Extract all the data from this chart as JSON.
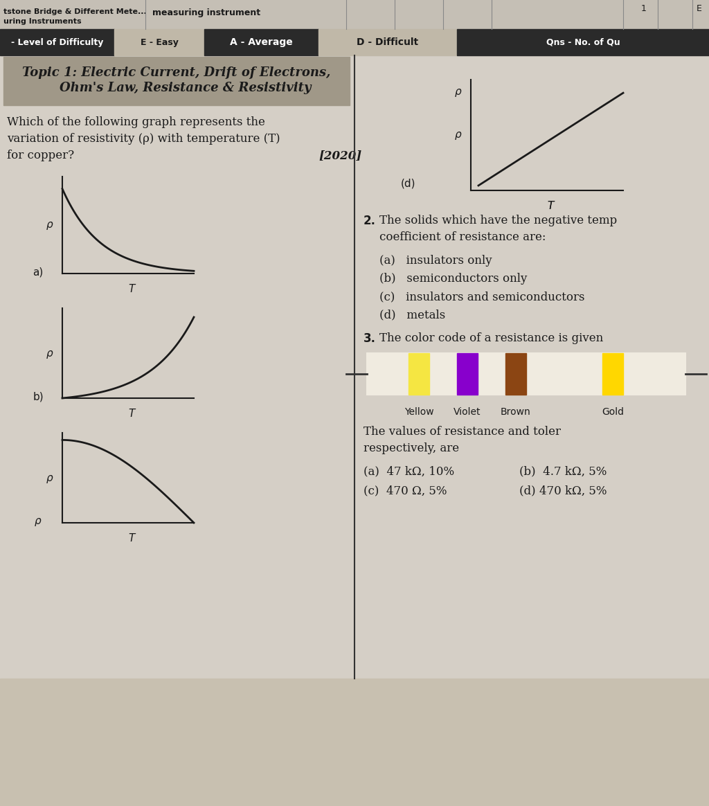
{
  "bg_color": "#d8d0c8",
  "page_bg": "#e8e0d5",
  "header_row1_bg": "#c8c0b8",
  "header_row2_dark": "#404040",
  "header_row2_light": "#c0b8b0",
  "topic_box_bg": "#b0a898",
  "title_text": "Topic 1: Electric Current, Drift of Electrons,\n    Ohm's Law, Resistance & Resistivity",
  "q1_text": "Which of the following graph represents the\nvariation of resistivity (ρ) with temperature (T)\nfor copper?",
  "q1_year": "[2020]",
  "q2_text": "2. The solids which have the negative temp\ncoefficient of resistance are:",
  "q2_options": [
    "(a) insulators only",
    "(b) semiconductors only",
    "(c) insulators and semiconductors",
    "(d) metals"
  ],
  "q3_text": "3. The color code of a resistance is given",
  "resistor_colors": [
    "#f5f0e8",
    "#1a1a1a",
    "#1a1a1a",
    "#1a1a1a",
    "#1a1a1a",
    "#1a1a1a",
    "#1a1a1a",
    "#1a1a1a"
  ],
  "color_labels": [
    "Yellow",
    "Violet",
    "Brown",
    "Gold"
  ],
  "resistance_text": "The values of resistance and toler\nrespectively, are",
  "ans_a": "(a)  47 kΩ, 10%",
  "ans_b": "(b)  4.7 kΩ, 5%",
  "ans_c": "(c)  470 Ω, 5%",
  "ans_d": "(d) 470 kΩ, 5%",
  "header_labels": [
    "- Level of Difficulty",
    "E - Easy",
    "A - Average",
    "D - Difficult",
    "Qns - No. of Qu"
  ],
  "top_header1": "tstone Bridge & Different Mete...",
  "top_header2": "uring Instruments",
  "top_header3": "measuring instrument"
}
